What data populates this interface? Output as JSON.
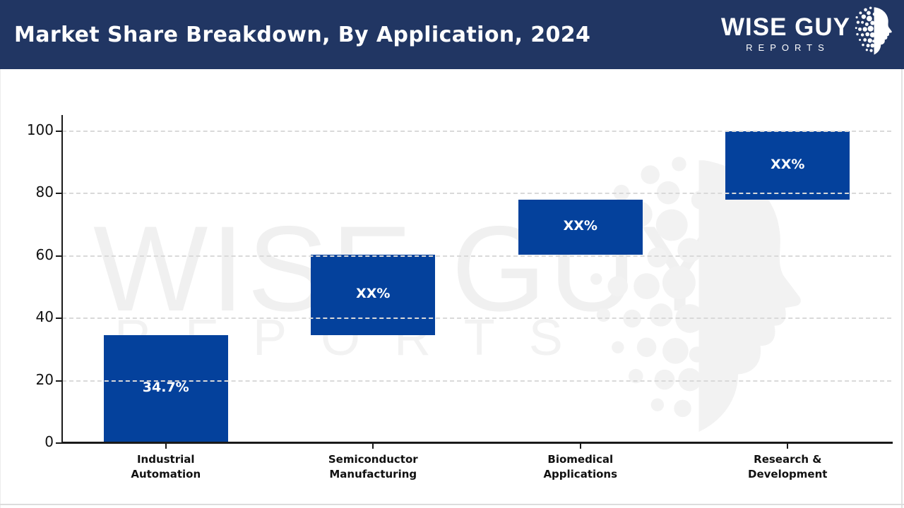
{
  "header": {
    "title": "Market Share Breakdown, By Application, 2024",
    "logo": {
      "brand_line1": "WISE GUY",
      "brand_line2": "REPORTS"
    }
  },
  "watermark": {
    "line1": "WISE GUY",
    "line2": "REPORTS"
  },
  "colors": {
    "header_bg": "#213663",
    "bar_blue": "#04419c",
    "grid_gray": "#d9d9d9",
    "axis_black": "#1a1a1a"
  },
  "chart_data": {
    "type": "bar",
    "subtype": "waterfall",
    "title": "Market Share Breakdown, By Application, 2024",
    "xlabel": "",
    "ylabel": "",
    "ylim": [
      0,
      100
    ],
    "yticks": [
      0,
      20,
      40,
      60,
      80,
      100
    ],
    "grid": {
      "style": "dashed",
      "axis": "y",
      "drawn_over_bars": true
    },
    "legend": null,
    "bar_color": "#04419c",
    "label_color": "#ffffff",
    "categories": [
      "Industrial Automation",
      "Semiconductor Manufacturing",
      "Biomedical Applications",
      "Research & Development"
    ],
    "bars": [
      {
        "category_lines": [
          "Industrial",
          "Automation"
        ],
        "start": 0,
        "end": 34.7,
        "label": "34.7%"
      },
      {
        "category_lines": [
          "Semiconductor",
          "Manufacturing"
        ],
        "start": 34.7,
        "end": 60.5,
        "label": "XX%"
      },
      {
        "category_lines": [
          "Biomedical",
          "Applications"
        ],
        "start": 60.5,
        "end": 78.0,
        "label": "XX%"
      },
      {
        "category_lines": [
          "Research &",
          "Development"
        ],
        "start": 78.0,
        "end": 100.0,
        "label": "XX%"
      }
    ]
  }
}
